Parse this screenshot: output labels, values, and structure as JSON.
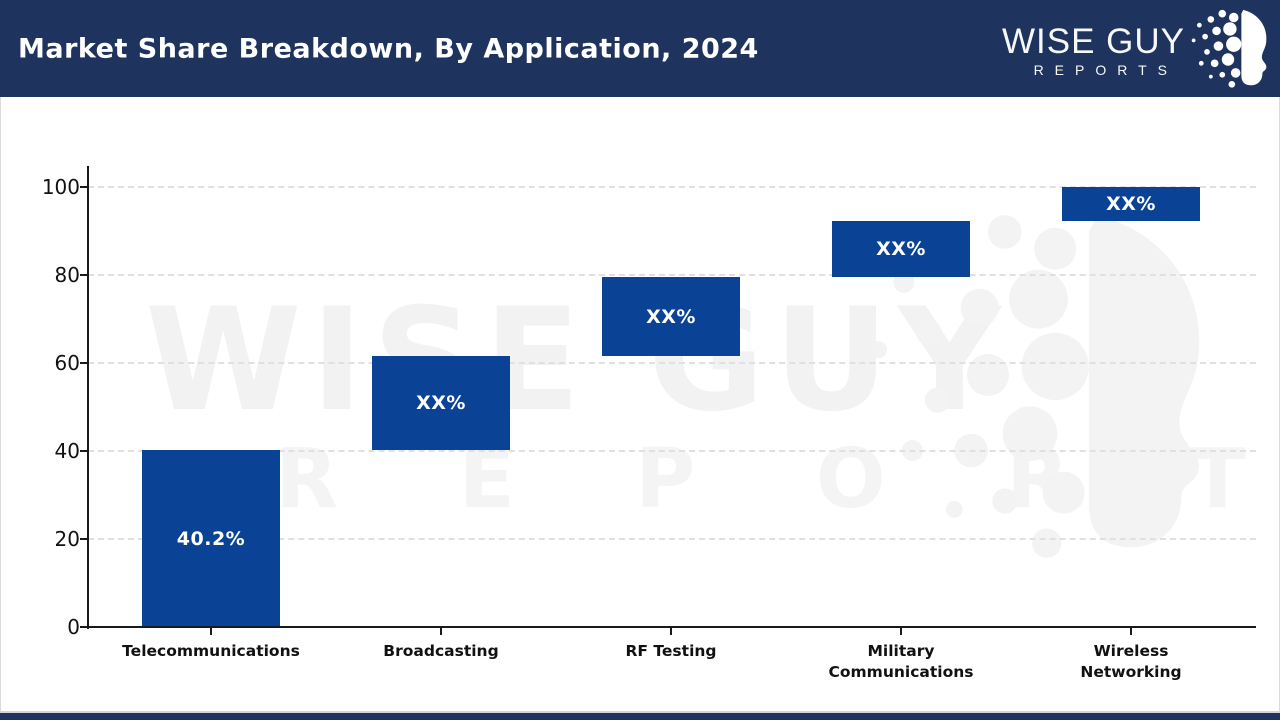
{
  "header": {
    "title": "Market Share Breakdown, By Application, 2024",
    "logo": {
      "primary": "WISE GUY",
      "secondary": "REPORTS"
    }
  },
  "watermark": {
    "primary": "WISE GUY",
    "secondary": "REPORTS"
  },
  "chart_data": {
    "type": "bar",
    "subtype": "waterfall",
    "title": "Market Share Breakdown, By Application, 2024",
    "categories": [
      "Telecommunications",
      "Broadcasting",
      "RF Testing",
      "Military Communications",
      "Wireless Networking"
    ],
    "category_label_lines": [
      [
        "Telecommunications"
      ],
      [
        "Broadcasting"
      ],
      [
        "RF Testing"
      ],
      [
        "Military",
        "Communications"
      ],
      [
        "Wireless",
        "Networking"
      ]
    ],
    "bars": [
      {
        "category": "Telecommunications",
        "start": 0,
        "end": 40.2,
        "label": "40.2%"
      },
      {
        "category": "Broadcasting",
        "start": 40.2,
        "end": 61.5,
        "label": "XX%"
      },
      {
        "category": "RF Testing",
        "start": 61.5,
        "end": 79.5,
        "label": "XX%"
      },
      {
        "category": "Military Communications",
        "start": 79.5,
        "end": 92.3,
        "label": "XX%"
      },
      {
        "category": "Wireless Networking",
        "start": 92.3,
        "end": 100,
        "label": "XX%"
      }
    ],
    "yticks": [
      0,
      20,
      40,
      60,
      80,
      100
    ],
    "ylim": [
      0,
      104
    ],
    "xlabel": "",
    "ylabel": "",
    "legend": null,
    "grid": "horizontal-dashed",
    "bar_color": "#0a4296",
    "bar_label_color": "#ffffff"
  },
  "colors": {
    "header_bg": "#1e345f",
    "header_text": "#ffffff",
    "bar": "#0a4296",
    "watermark": "#f2f2f2",
    "grid": "#e0e0e0",
    "axis": "#1a1a1a",
    "footer_bar": "#1e345f"
  }
}
